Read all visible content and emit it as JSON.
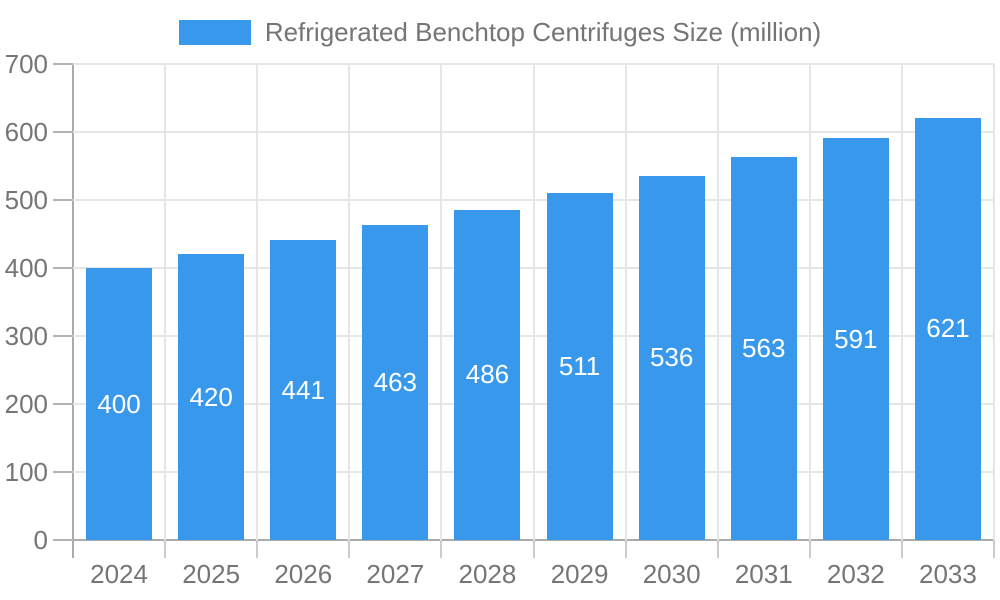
{
  "chart_data": {
    "type": "bar",
    "series_name": "Refrigerated Benchtop Centrifuges Size (million)",
    "categories": [
      "2024",
      "2025",
      "2026",
      "2027",
      "2028",
      "2029",
      "2030",
      "2031",
      "2032",
      "2033"
    ],
    "values": [
      400,
      420,
      441,
      463,
      486,
      511,
      536,
      563,
      591,
      621
    ],
    "ylim": [
      0,
      700
    ],
    "yticks": [
      0,
      100,
      200,
      300,
      400,
      500,
      600,
      700
    ],
    "grid": "both",
    "legend_position": "top-center",
    "bar_color": "#3899EC",
    "value_label_color": "#FFFFFF",
    "tick_label_color": "#757575",
    "axis_color": "#ABABAB",
    "gridline_color": "#E6E6E6"
  }
}
